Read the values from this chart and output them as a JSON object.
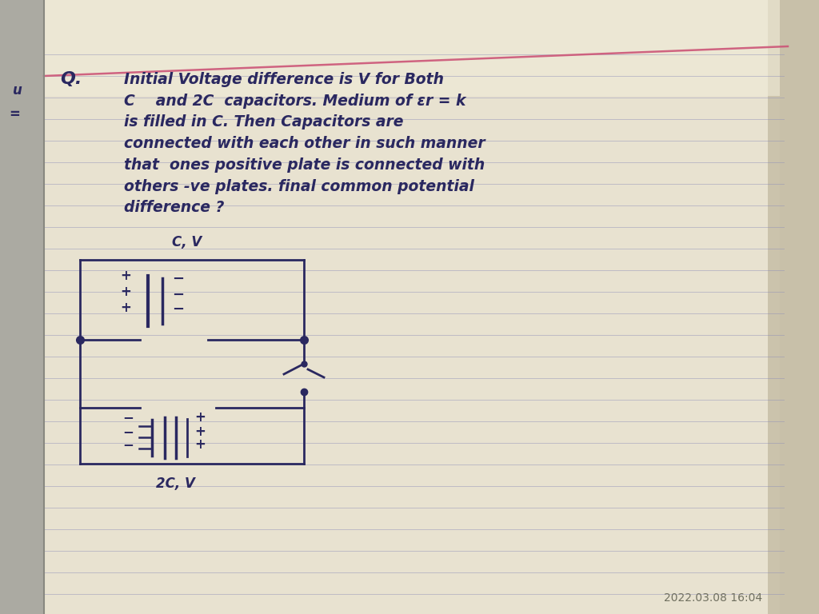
{
  "bg_color": "#c8c4b8",
  "paper_color_main": "#e8e2d0",
  "paper_color_light": "#f0ecd8",
  "binding_color": "#b0b0b0",
  "ink_color": "#2a2860",
  "pink_line_color": "#cc5577",
  "ruled_line_color": "#9090b8",
  "title": "Q.",
  "text_lines": [
    "Initial Voltage difference is V for Both",
    "C    and 2C  capacitors. Medium of εr = k",
    "is filled in C. Then Capacitors are",
    "connected with each other in such manner",
    "that  ones positive plate is connected with",
    "others -ve plates. final common potential",
    "difference ?"
  ],
  "label_top": "C, V",
  "label_bottom": "2C, V",
  "timestamp": "2022.03.08 16:04",
  "figsize": [
    10.24,
    7.68
  ],
  "dpi": 100
}
